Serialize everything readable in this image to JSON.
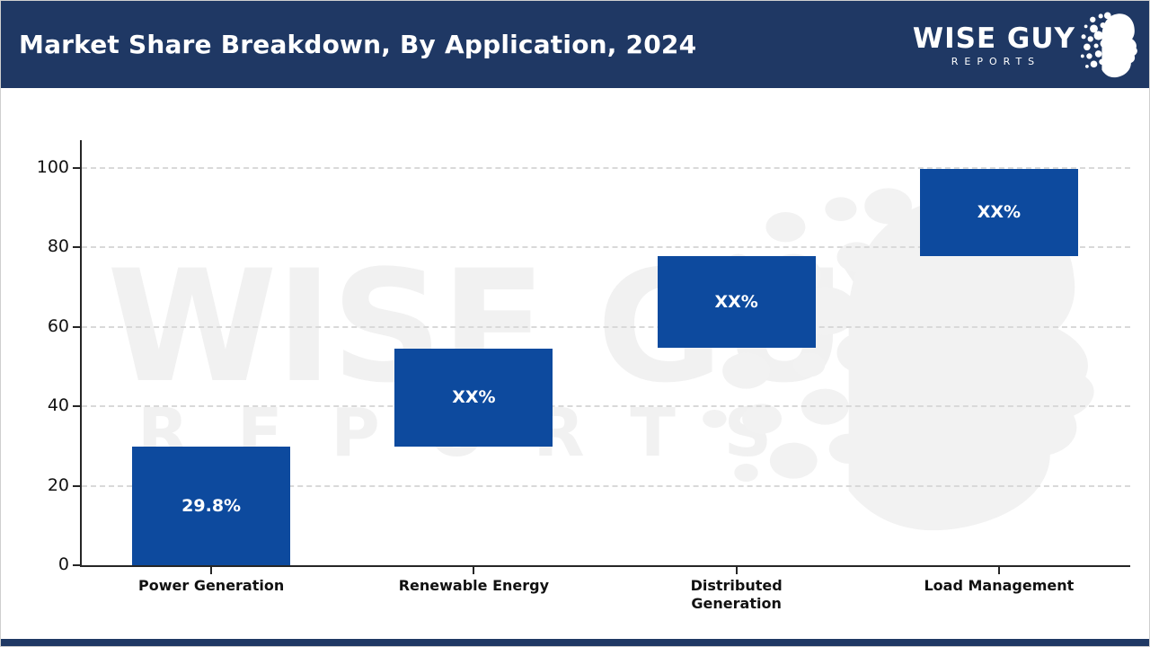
{
  "header": {
    "title": "Market Share Breakdown, By Application, 2024",
    "logo": {
      "name": "WISE GUY",
      "sub": "REPORTS"
    }
  },
  "watermark": {
    "line1": "WISE GUY",
    "line2": "REPORTS"
  },
  "chart_data": {
    "type": "bar",
    "variant": "waterfall",
    "title": "Market Share Breakdown, By Application, 2024",
    "categories": [
      "Power Generation",
      "Renewable Energy",
      "Distributed Generation",
      "Load Management"
    ],
    "segments": [
      {
        "category": "Power Generation",
        "start": 0,
        "end": 29.8,
        "label": "29.8%"
      },
      {
        "category": "Renewable Energy",
        "start": 29.8,
        "end": 54.6,
        "label": "XX%"
      },
      {
        "category": "Distributed Generation",
        "start": 54.8,
        "end": 77.8,
        "label": "XX%"
      },
      {
        "category": "Load Management",
        "start": 77.9,
        "end": 99.8,
        "label": "XX%"
      }
    ],
    "yticks": [
      0,
      20,
      40,
      60,
      80,
      100
    ],
    "ylim": [
      0,
      107
    ],
    "grid": "horizontal-dashed",
    "legend": "none",
    "bar_color": "#0d4a9e",
    "bar_label_color": "#ffffff"
  },
  "colors": {
    "header_bg": "#1f3864",
    "footer_bg": "#1f3864",
    "bar": "#0d4a9e",
    "grid_line": "#d9d9d9",
    "axis_line": "#262626",
    "tick_text": "#111111",
    "watermark": "#f1f1f1",
    "title_text": "#ffffff"
  }
}
